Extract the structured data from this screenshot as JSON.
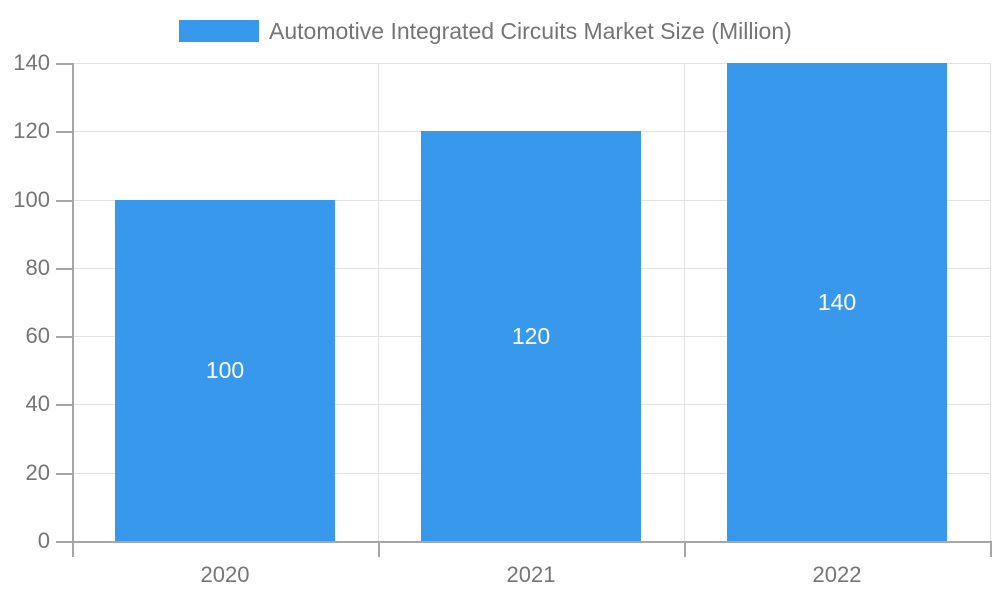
{
  "chart_data": {
    "type": "bar",
    "title": "Automotive Integrated Circuits Market Size (Million)",
    "categories": [
      "2020",
      "2021",
      "2022"
    ],
    "series": [
      {
        "name": "Automotive Integrated Circuits Market Size (Million)",
        "values": [
          100,
          120,
          140
        ]
      }
    ],
    "bar_value_labels": [
      "100",
      "120",
      "140"
    ],
    "ytick_labels": [
      "0",
      "20",
      "40",
      "60",
      "80",
      "100",
      "120",
      "140"
    ],
    "ylim": [
      0,
      140
    ],
    "ytick_step": 20,
    "xlabel": "",
    "ylabel": "",
    "grid": true,
    "legend_position": "top",
    "colors": {
      "bar": "#3899EC",
      "axis": "#a6a6a6",
      "grid": "#e3e3e3",
      "tick_text": "#757575",
      "bar_label_text": "#ffffff",
      "background": "#ffffff"
    }
  }
}
